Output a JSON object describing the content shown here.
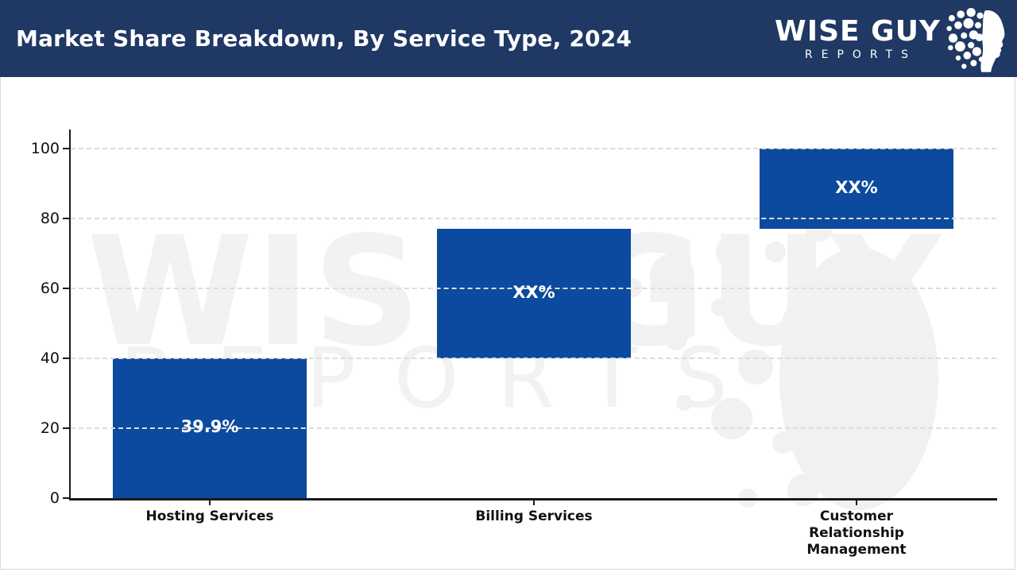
{
  "header": {
    "title": "Market Share Breakdown, By Service Type, 2024",
    "brand_line1": "WISE GUY",
    "brand_line2": "REPORTS",
    "bg_color": "#1f3864"
  },
  "watermark": {
    "line1": "WISE GUY",
    "line2": "REPORTS"
  },
  "chart_data": {
    "type": "bar",
    "variant": "floating-segment",
    "title": "Market Share Breakdown, By Service Type, 2024",
    "categories": [
      "Hosting Services",
      "Billing Services",
      "Customer Relationship Management"
    ],
    "bars": [
      {
        "category": "Hosting Services",
        "start": 0,
        "end": 39.9,
        "label": "39.9%"
      },
      {
        "category": "Billing Services",
        "start": 39.9,
        "end": 77,
        "label": "XX%"
      },
      {
        "category": "Customer Relationship Management",
        "start": 77,
        "end": 100,
        "label": "XX%"
      }
    ],
    "yticks": [
      0,
      20,
      40,
      60,
      80,
      100
    ],
    "ylim": [
      0,
      105
    ],
    "xlabel": "",
    "ylabel": "",
    "grid": "horizontal-dashed",
    "legend": "none",
    "bar_color": "#0b4a9e",
    "bar_label_color": "#ffffff",
    "axis_color": "#1a1a1a",
    "gridline_color": "#dcdcdc",
    "header_bg_color": "#1f3864"
  }
}
